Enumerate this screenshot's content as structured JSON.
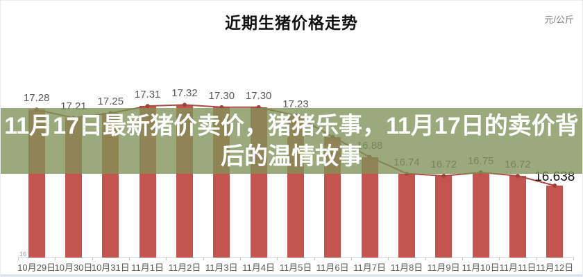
{
  "window": {
    "title": "近期生猪价格走势",
    "unit": "元/公斤"
  },
  "banner": {
    "line1": "11月17日最新猪价卖价，猪猪乐事，11月17日的卖价背",
    "line2": "后的温情故事",
    "full_text": "11月17日最新猪价卖价，猪猪乐事，11月17日的卖价背后的温情故事",
    "bg_color": "rgba(127,146,88,0.78)",
    "text_color": "#ffffff"
  },
  "chart_data": {
    "type": "bar",
    "overlay_line": true,
    "title": "近期生猪价格走势",
    "ylabel": "元/公斤",
    "xlabel": "",
    "grid": false,
    "legend": "none",
    "ylim": [
      16,
      17.8
    ],
    "y_axis_visible_tick": "16",
    "categories": [
      "10月29日",
      "10月30日",
      "10月31日",
      "11月1日",
      "11月2日",
      "11月3日",
      "11月4日",
      "11月5日",
      "11月6日",
      "11月7日",
      "11月8日",
      "11月9日",
      "11月10日",
      "11月11日",
      "11月12日"
    ],
    "values": [
      17.28,
      17.21,
      17.25,
      17.31,
      17.32,
      17.3,
      17.3,
      17.23,
      17.05,
      16.88,
      16.74,
      16.72,
      16.75,
      16.72,
      16.638
    ],
    "data_labels": [
      "17.28",
      "17.21",
      "17.25",
      "17.31",
      "17.32",
      "17.30",
      "17.30",
      "17.23",
      "",
      "16.88",
      "16.74",
      "16.72",
      "16.75",
      "16.72",
      "16.638"
    ],
    "label_notes": "index 8 (11月6日) label obscured by overlay banner; value estimated from bar height. Last label (16.638) rendered larger and black.",
    "bar_color": "#c35450",
    "line_color": "#a84b42",
    "marker_color": "#9c4238",
    "label_color": "#595959",
    "last_label_color": "#141414"
  }
}
